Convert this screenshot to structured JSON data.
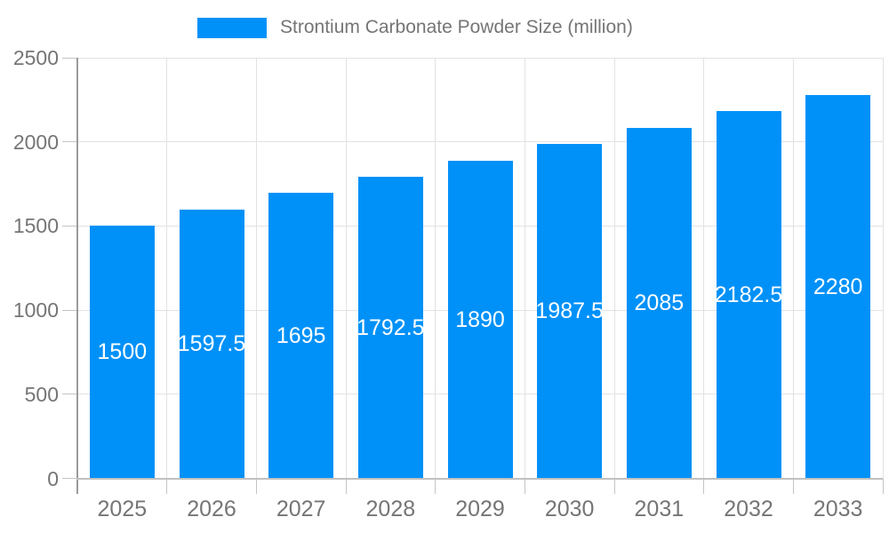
{
  "chart_data": {
    "type": "bar",
    "title": "Strontium Carbonate Powder Size (million)",
    "categories": [
      "2025",
      "2026",
      "2027",
      "2028",
      "2029",
      "2030",
      "2031",
      "2032",
      "2033"
    ],
    "series": [
      {
        "name": "Strontium Carbonate Powder Size (million)",
        "values": [
          1500,
          1597.5,
          1695,
          1792.5,
          1890,
          1987.5,
          2085,
          2182.5,
          2280
        ]
      }
    ],
    "xlabel": "",
    "ylabel": "",
    "ylim": [
      0,
      2500
    ],
    "yticks": [
      0,
      500,
      1000,
      1500,
      2000,
      2500
    ],
    "grid": true,
    "legend_position": "top-center",
    "bar_labels_inside": true,
    "colors": {
      "bar": "#0091F8",
      "grid": "#e2e2e2",
      "y_axis": "#9b9b9b",
      "baseline": "#c0c0c0",
      "tick": "#c4c4c4",
      "axis_text": "#757575",
      "bar_label_text": "#ffffff",
      "background": "#ffffff"
    }
  }
}
